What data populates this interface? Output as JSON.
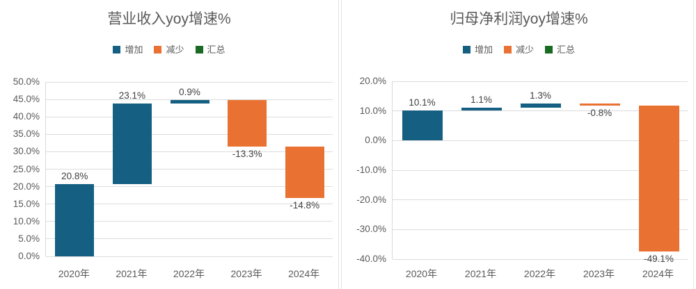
{
  "colors": {
    "increase": "#156082",
    "decrease": "#E97132",
    "total": "#196B24",
    "gridline": "#DCDCDC",
    "axis_text": "#595959",
    "data_label": "#404040",
    "divider": "#E2E2E2",
    "window_edge": "#E8E8E8"
  },
  "chart_data": [
    {
      "type": "waterfall",
      "title": "营业收入yoy增速%",
      "legend": [
        {
          "label": "增加",
          "color_key": "increase"
        },
        {
          "label": "减少",
          "color_key": "decrease"
        },
        {
          "label": "汇总",
          "color_key": "total"
        }
      ],
      "legend_position": "top",
      "grid": true,
      "categories": [
        "2020年",
        "2021年",
        "2022年",
        "2023年",
        "2024年"
      ],
      "values": [
        20.8,
        23.1,
        0.9,
        -13.3,
        -14.8
      ],
      "bar_types": [
        "increase",
        "increase",
        "increase",
        "decrease",
        "decrease"
      ],
      "cumulative": [
        20.8,
        43.9,
        44.8,
        31.5,
        16.7
      ],
      "data_labels": [
        "20.8%",
        "23.1%",
        "0.9%",
        "-13.3%",
        "-14.8%"
      ],
      "ylabel": "",
      "xlabel": "",
      "ylim": [
        0,
        50
      ],
      "ytick_step": 5,
      "ytick_labels": [
        "50.0%",
        "45.0%",
        "40.0%",
        "35.0%",
        "30.0%",
        "25.0%",
        "20.0%",
        "15.0%",
        "10.0%",
        "5.0%",
        "0.0%"
      ]
    },
    {
      "type": "waterfall",
      "title": "归母净利润yoy增速%",
      "legend": [
        {
          "label": "增加",
          "color_key": "increase"
        },
        {
          "label": "减少",
          "color_key": "decrease"
        },
        {
          "label": "汇总",
          "color_key": "total"
        }
      ],
      "legend_position": "top",
      "grid": true,
      "categories": [
        "2020年",
        "2021年",
        "2022年",
        "2023年",
        "2024年"
      ],
      "values": [
        10.1,
        1.1,
        1.3,
        -0.8,
        -49.1
      ],
      "bar_types": [
        "increase",
        "increase",
        "increase",
        "decrease",
        "decrease"
      ],
      "cumulative": [
        10.1,
        11.2,
        12.5,
        11.7,
        -37.4
      ],
      "data_labels": [
        "10.1%",
        "1.1%",
        "1.3%",
        "-0.8%",
        "-49.1%"
      ],
      "ylabel": "",
      "xlabel": "",
      "ylim": [
        -40,
        20
      ],
      "ytick_step": 10,
      "ytick_labels": [
        "20.0%",
        "10.0%",
        "0.0%",
        "-10.0%",
        "-20.0%",
        "-30.0%",
        "-40.0%"
      ]
    }
  ]
}
